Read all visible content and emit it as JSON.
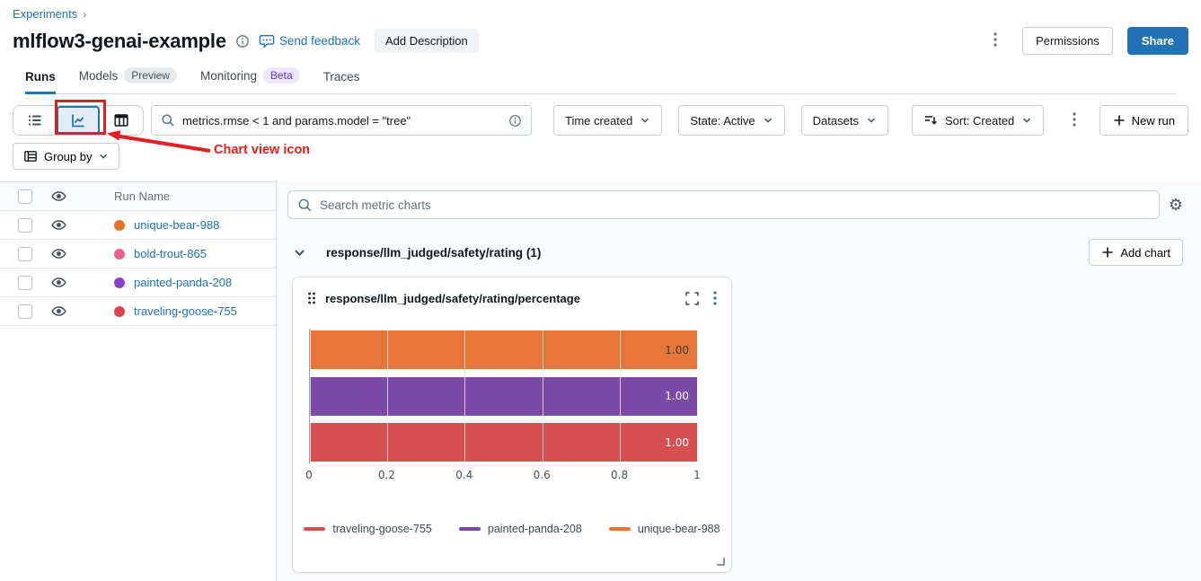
{
  "breadcrumb": {
    "label": "Experiments"
  },
  "header": {
    "title": "mlflow3-genai-example",
    "send_feedback_label": "Send feedback",
    "add_description_label": "Add Description",
    "permissions_label": "Permissions",
    "share_label": "Share"
  },
  "tabs": [
    {
      "label": "Runs",
      "active": true
    },
    {
      "label": "Models",
      "badge": "Preview"
    },
    {
      "label": "Monitoring",
      "badge": "Beta"
    },
    {
      "label": "Traces"
    }
  ],
  "toolbar": {
    "search_value": "metrics.rmse < 1 and params.model = \"tree\"",
    "time_created_label": "Time created",
    "state_label": "State: Active",
    "datasets_label": "Datasets",
    "sort_label": "Sort: Created",
    "new_run_label": "New run",
    "group_by_label": "Group by"
  },
  "annotation": {
    "label": "Chart view icon",
    "color": "#E41E1E"
  },
  "runs_table": {
    "column_header": "Run Name",
    "rows": [
      {
        "name": "unique-bear-988",
        "color": "#e8702b"
      },
      {
        "name": "bold-trout-865",
        "color": "#e8648f"
      },
      {
        "name": "painted-panda-208",
        "color": "#8a42c8"
      },
      {
        "name": "traveling-goose-755",
        "color": "#de4350"
      }
    ]
  },
  "charts_panel": {
    "search_placeholder": "Search metric charts",
    "section_title": "response/llm_judged/safety/rating",
    "section_count": "(1)",
    "add_chart_label": "Add chart",
    "chart_title": "response/llm_judged/safety/rating/percentage"
  },
  "chart_data": {
    "type": "bar",
    "orientation": "horizontal",
    "title": "response/llm_judged/safety/rating/percentage",
    "categories": [
      "unique-bear-988",
      "painted-panda-208",
      "traveling-goose-755"
    ],
    "values": [
      1.0,
      1.0,
      1.0
    ],
    "value_labels": [
      "1.00",
      "1.00",
      "1.00"
    ],
    "bar_colors": [
      "#e8753a",
      "#7b4aa8",
      "#d5504e"
    ],
    "label_text_colors": [
      "#3d3d3d",
      "#ffffff",
      "#ffffff"
    ],
    "xlim": [
      0,
      1
    ],
    "xticks": [
      0,
      0.2,
      0.4,
      0.6,
      0.8,
      1
    ],
    "xtick_labels": [
      "0",
      "0.2",
      "0.4",
      "0.6",
      "0.8",
      "1"
    ],
    "grid": true,
    "legend_position": "bottom",
    "legend": [
      {
        "name": "traveling-goose-755",
        "color": "#d5504e"
      },
      {
        "name": "painted-panda-208",
        "color": "#7b4aa8"
      },
      {
        "name": "unique-bear-988",
        "color": "#e8753a"
      }
    ]
  }
}
